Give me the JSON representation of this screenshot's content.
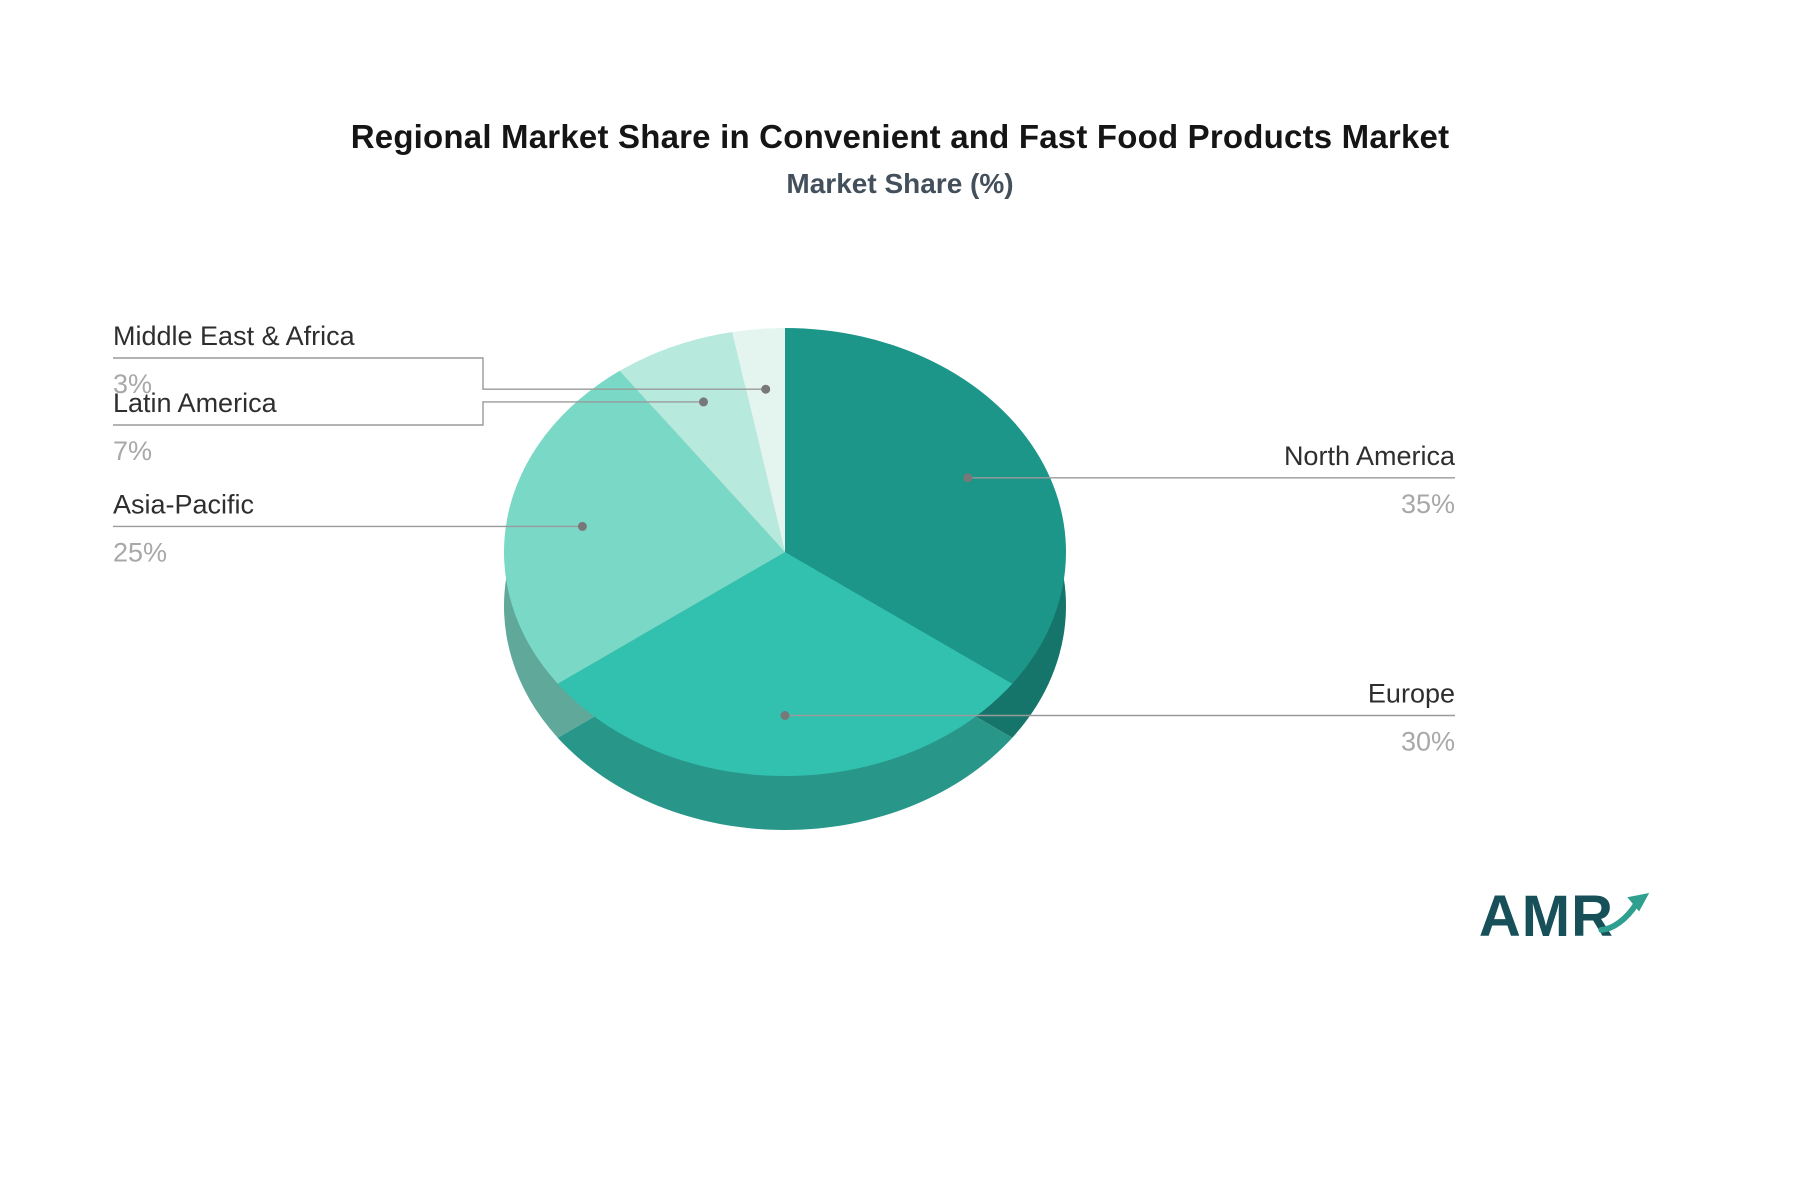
{
  "chart_data": {
    "type": "pie",
    "title": "Regional Market Share in Convenient and Fast Food Products Market",
    "subtitle": "Market Share (%)",
    "unit": "%",
    "direction": "clockwise",
    "start_angle": "12-oclock",
    "effect": "3d-depth",
    "legend": "none (callout labels with leader lines)",
    "slices": [
      {
        "label": "North America",
        "value": 35,
        "value_label": "35%",
        "color": "#1b9688",
        "callout_side": "right"
      },
      {
        "label": "Europe",
        "value": 30,
        "value_label": "30%",
        "color": "#33c1af",
        "callout_side": "right"
      },
      {
        "label": "Asia-Pacific",
        "value": 25,
        "value_label": "25%",
        "color": "#7ad8c6",
        "callout_side": "left"
      },
      {
        "label": "Latin America",
        "value": 7,
        "value_label": "7%",
        "color": "#b7e9dd",
        "callout_side": "left"
      },
      {
        "label": "Middle East & Africa",
        "value": 3,
        "value_label": "3%",
        "color": "#e4f5f0",
        "callout_side": "left"
      }
    ],
    "style": {
      "label_color": "#2e2e2e",
      "percent_color": "#a8a8a8",
      "leader_line_color": "#9a9a9a",
      "leader_dot_color": "#787878",
      "title_color": "#151515",
      "subtitle_color": "#43505c"
    }
  },
  "logo": {
    "text": "AMR",
    "text_color": "#175059",
    "arrow_color": "#2f9f90"
  }
}
